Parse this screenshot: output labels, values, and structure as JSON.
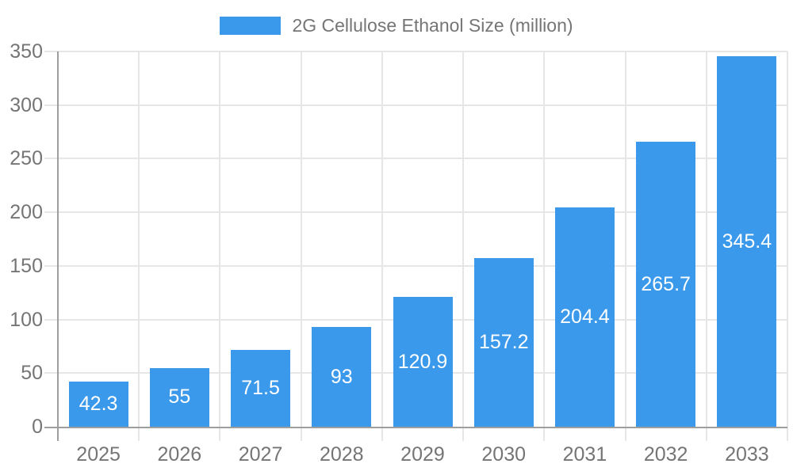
{
  "chart_data": {
    "type": "bar",
    "title": "2G Cellulose Ethanol Size (million)",
    "categories": [
      "2025",
      "2026",
      "2027",
      "2028",
      "2029",
      "2030",
      "2031",
      "2032",
      "2033"
    ],
    "values": [
      42.3,
      55,
      71.5,
      93,
      120.9,
      157.2,
      204.4,
      265.7,
      345.4
    ],
    "bar_labels": [
      "42.3",
      "55",
      "71.5",
      "93",
      "120.9",
      "157.2",
      "204.4",
      "265.7",
      "345.4"
    ],
    "y_ticks": [
      "0",
      "50",
      "100",
      "150",
      "200",
      "250",
      "300",
      "350"
    ],
    "ylim": [
      0,
      350
    ],
    "xlabel": "",
    "ylabel": "",
    "grid": true,
    "legend_position": "top",
    "colors": {
      "bar": "#3b99eb",
      "bar_label": "#ffffff",
      "axis_line": "#9e9e9e",
      "gridline": "#e6e6e6",
      "tick_label": "#757575",
      "legend_text": "#757575",
      "background": "#ffffff"
    }
  }
}
